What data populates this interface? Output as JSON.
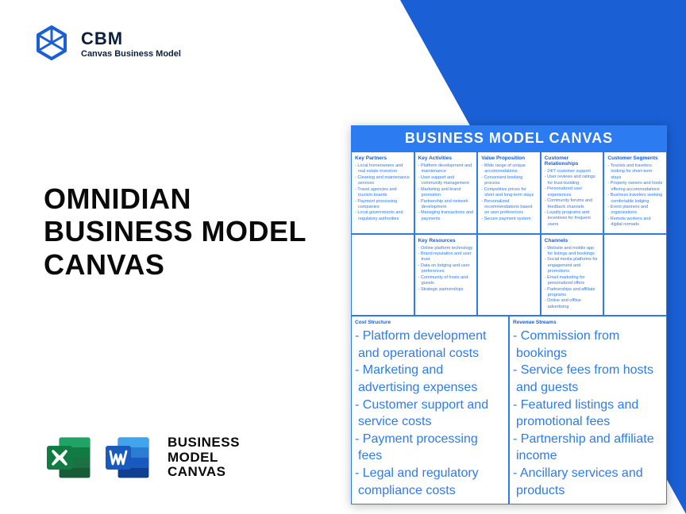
{
  "logo": {
    "title": "CBM",
    "subtitle": "Canvas Business Model"
  },
  "main_title": {
    "l1": "OMNIDIAN",
    "l2": "BUSINESS MODEL",
    "l3": "CANVAS"
  },
  "footer_label": {
    "l1": "BUSINESS",
    "l2": "MODEL",
    "l3": "CANVAS"
  },
  "canvas": {
    "header": "BUSINESS MODEL CANVAS",
    "key_partners": {
      "title": "Key Partners",
      "items": [
        "Local homeowners and real estate investors",
        "Cleaning and maintenance services",
        "Travel agencies and tourism boards",
        "Payment processing companies",
        "Local governments and regulatory authorities"
      ]
    },
    "key_activities": {
      "title": "Key Activities",
      "items": [
        "Platform development and maintenance",
        "User support and community management",
        "Marketing and brand promotion",
        "Partnership and network development",
        "Managing transactions and payments"
      ]
    },
    "value_proposition": {
      "title": "Value Proposition",
      "items": [
        "Wide range of unique accommodations",
        "Convenient booking process",
        "Competitive prices for short and long-term stays",
        "Personalized recommendations based on user preferences",
        "Secure payment system"
      ]
    },
    "customer_relationships": {
      "title": "Customer Relationships",
      "items": [
        "24/7 customer support",
        "User reviews and ratings for trust-building",
        "Personalized user experiences",
        "Community forums and feedback channels",
        "Loyalty programs and incentives for frequent users"
      ]
    },
    "customer_segments": {
      "title": "Customer Segments",
      "items": [
        "Tourists and travelers looking for short-term stays",
        "Property owners and hosts offering accommodations",
        "Business travelers seeking comfortable lodging",
        "Event planners and organizations",
        "Remote workers and digital nomads"
      ]
    },
    "key_resources": {
      "title": "Key Resources",
      "items": [
        "Online platform technology",
        "Brand reputation and user trust",
        "Data on lodging and user preferences",
        "Community of hosts and guests",
        "Strategic partnerships"
      ]
    },
    "channels": {
      "title": "Channels",
      "items": [
        "Website and mobile app for listings and bookings",
        "Social media platforms for engagement and promotions",
        "Email marketing for personalized offers",
        "Partnerships and affiliate programs",
        "Online and offline advertising"
      ]
    },
    "cost_structure": {
      "title": "Cost Structure",
      "items": [
        "Platform development and operational costs",
        "Marketing and advertising expenses",
        "Customer support and service costs",
        "Payment processing fees",
        "Legal and regulatory compliance costs"
      ]
    },
    "revenue_streams": {
      "title": "Revenue Streams",
      "items": [
        "Commission from bookings",
        "Service fees from hosts and guests",
        "Featured listings and promotional fees",
        "Partnership and affiliate income",
        "Ancillary services and products"
      ]
    }
  },
  "colors": {
    "accent": "#1a5fd4",
    "header_blue": "#2d7bf0",
    "excel_green": "#1d7044",
    "word_blue": "#2b579a"
  }
}
